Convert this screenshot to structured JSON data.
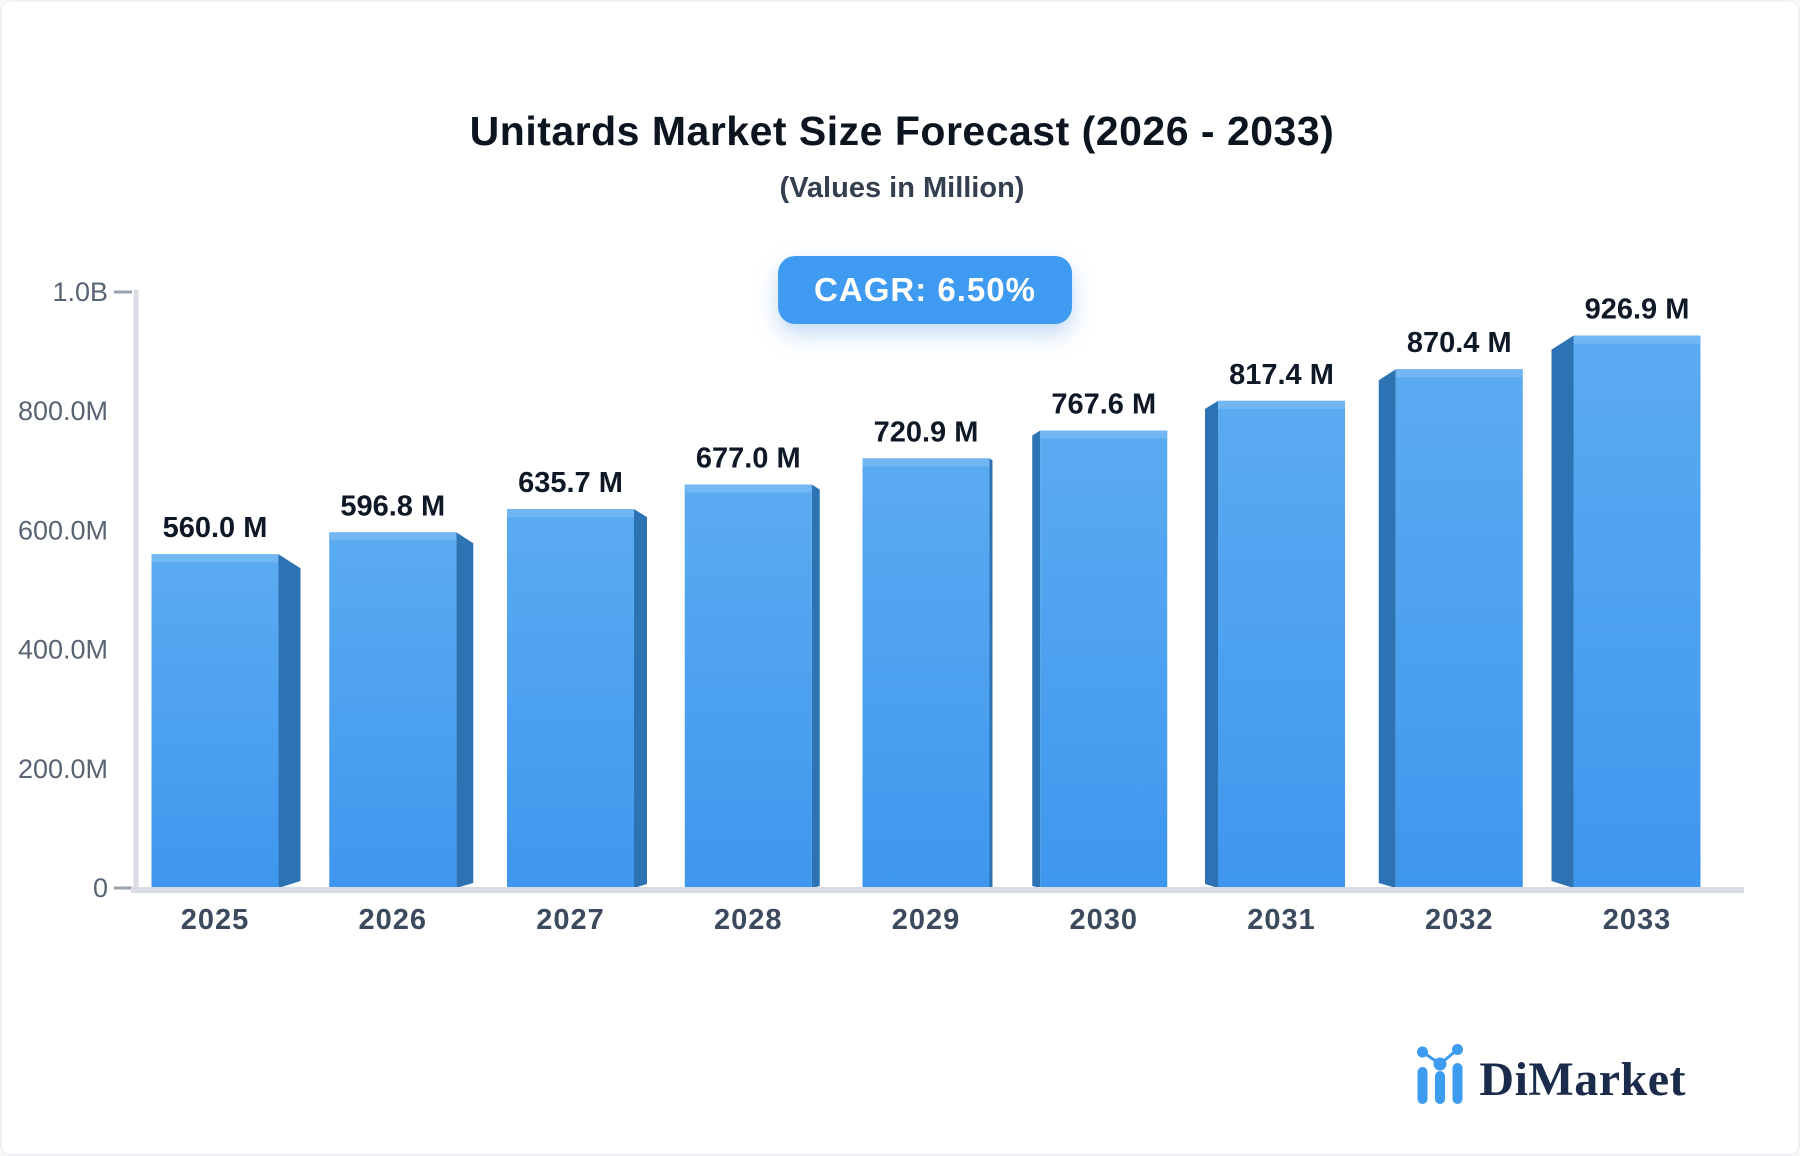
{
  "title": "Unitards Market Size Forecast (2026 - 2033)",
  "subtitle": "(Values in Million)",
  "badge": {
    "label": "CAGR: 6.50%"
  },
  "brand": {
    "name": "DiMarket"
  },
  "colors": {
    "accent": "#3f9bf1",
    "bar_front_top": "#5babf1",
    "bar_front_bottom": "#3e97ee",
    "bar_top_strip": "#72b6f3",
    "bar_side": "#2d73b4",
    "axis_line": "#d9dde3",
    "tick_mark": "#9aa3ad",
    "axis_text": "#586374",
    "year_text": "#3c4a5e",
    "value_text": "#0f1826",
    "badge_bg": "#3f9bf1",
    "badge_text": "#ffffff",
    "brand_text": "#1b2b4b",
    "brand_icon": "#3d9bf0"
  },
  "chart_data": {
    "type": "bar",
    "title": "Unitards Market Size Forecast (2026 - 2033)",
    "subtitle": "(Values in Million)",
    "cagr": "6.50%",
    "categories": [
      "2025",
      "2026",
      "2027",
      "2028",
      "2029",
      "2030",
      "2031",
      "2032",
      "2033"
    ],
    "values": [
      560.0,
      596.8,
      635.7,
      677.0,
      720.9,
      767.6,
      817.4,
      870.4,
      926.9
    ],
    "value_labels": [
      "560.0 M",
      "596.8 M",
      "635.7 M",
      "677.0 M",
      "720.9 M",
      "767.6 M",
      "817.4 M",
      "870.4 M",
      "926.9 M"
    ],
    "unit_suffix": "M",
    "xlabel": "",
    "ylabel": "",
    "ylim": [
      0,
      1000
    ],
    "y_ticks": [
      {
        "value": 1000,
        "label": "1.0B"
      },
      {
        "value": 800,
        "label": "800.0M"
      },
      {
        "value": 600,
        "label": "600.0M"
      },
      {
        "value": 400,
        "label": "400.0M"
      },
      {
        "value": 200,
        "label": "200.0M"
      },
      {
        "value": 0,
        "label": "0"
      }
    ],
    "grid": false,
    "legend": null,
    "bar_label_position": "above",
    "style": "3d-perspective-bars"
  }
}
